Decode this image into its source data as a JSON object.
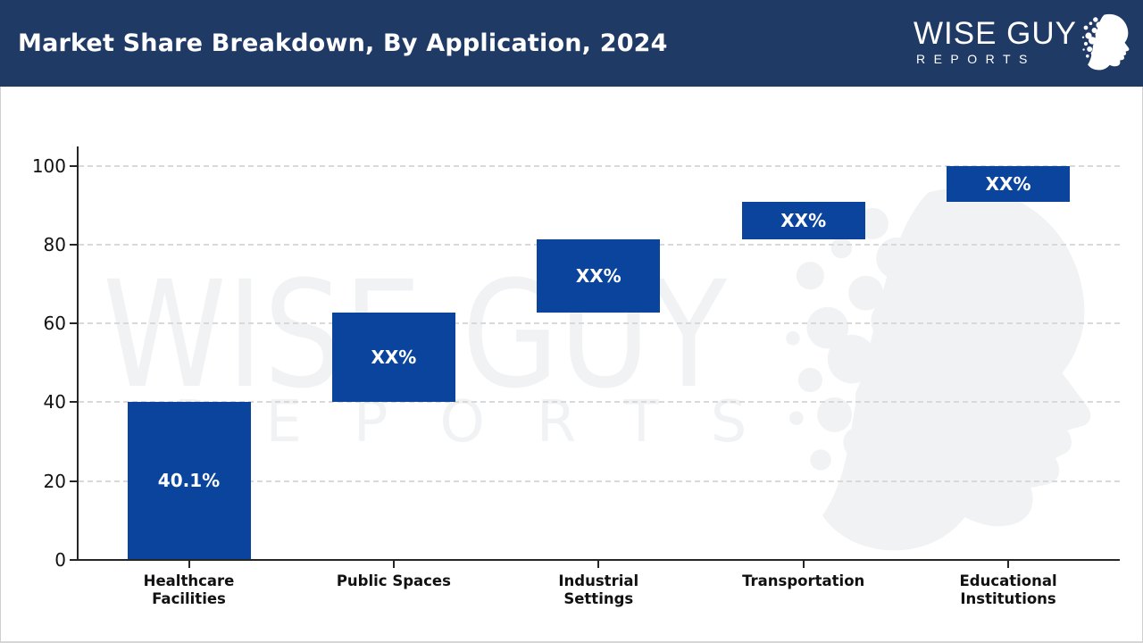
{
  "header": {
    "title": "Market Share Breakdown, By Application, 2024",
    "bg_color": "#203a66",
    "logo": {
      "line1": "WISE GUY",
      "line2": "REPORTS"
    }
  },
  "watermark": {
    "line1": "WISE GUY",
    "line2": "REPORTS"
  },
  "chart_data": {
    "type": "bar",
    "subtype": "waterfall",
    "title": "Market Share Breakdown, By Application, 2024",
    "xlabel": "",
    "ylabel": "",
    "categories": [
      "Healthcare\nFacilities",
      "Public Spaces",
      "Industrial\nSettings",
      "Transportation",
      "Educational\nInstitutions"
    ],
    "series": [
      {
        "name": "Market Share",
        "segments": [
          {
            "category": "Healthcare Facilities",
            "start": 0,
            "end": 40.1,
            "label": "40.1%"
          },
          {
            "category": "Public Spaces",
            "start": 40.1,
            "end": 62.8,
            "label": "XX%"
          },
          {
            "category": "Industrial Settings",
            "start": 62.8,
            "end": 81.4,
            "label": "XX%"
          },
          {
            "category": "Transportation",
            "start": 81.4,
            "end": 90.9,
            "label": "XX%"
          },
          {
            "category": "Educational Institutions",
            "start": 90.9,
            "end": 100,
            "label": "XX%"
          }
        ]
      }
    ],
    "ylim": [
      0,
      100
    ],
    "yticks": [
      0,
      20,
      40,
      60,
      80,
      100
    ],
    "grid": "horizontal dashed",
    "legend": "none",
    "bar_color": "#0a449c",
    "bar_label_color": "#ffffff",
    "grid_color": "#d9d9d9",
    "axis_color": "#262626"
  }
}
